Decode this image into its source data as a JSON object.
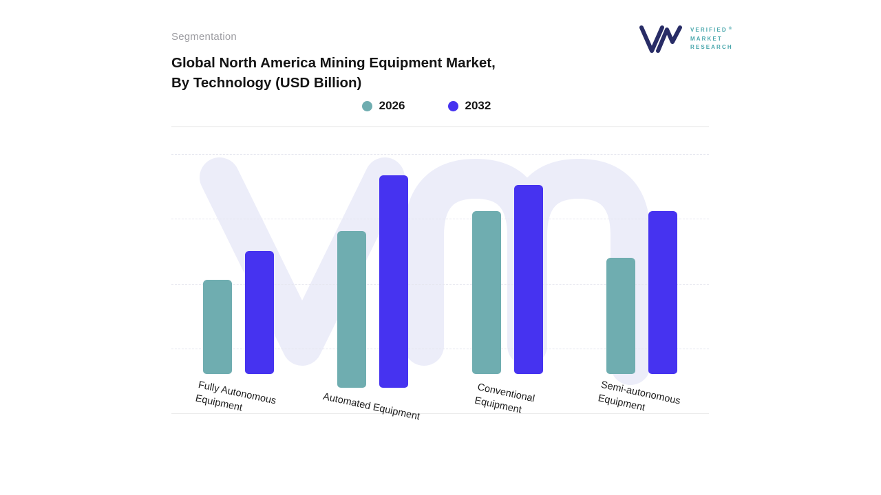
{
  "header": {
    "eyebrow": "Segmentation",
    "title_line1": "Global North America Mining Equipment Market,",
    "title_line2": "By Technology (USD Billion)"
  },
  "logo": {
    "line1": "VERIFIED",
    "line2": "MARKET",
    "line3": "RESEARCH",
    "registered": "®"
  },
  "legend": [
    {
      "label": "2026",
      "color": "#6fadb0"
    },
    {
      "label": "2032",
      "color": "#4633f0"
    }
  ],
  "category_label_lines": [
    [
      "Fully Autonomous",
      "Equipment"
    ],
    [
      "Automated Equipment"
    ],
    [
      "Conventional",
      "Equipment"
    ],
    [
      "Semi-autonomous",
      "Equipment"
    ]
  ],
  "chart_data": {
    "type": "bar",
    "title": "Global North America Mining Equipment Market, By Technology (USD Billion)",
    "categories": [
      "Fully Autonomous Equipment",
      "Automated Equipment",
      "Conventional Equipment",
      "Semi-autonomous Equipment"
    ],
    "series": [
      {
        "name": "2026",
        "color": "#6fadb0",
        "values": [
          43,
          67,
          74,
          53
        ]
      },
      {
        "name": "2032",
        "color": "#4633f0",
        "values": [
          56,
          91,
          86,
          74
        ]
      }
    ],
    "xlabel": "",
    "ylabel": "",
    "ylim": [
      0,
      100
    ],
    "grid": "dashed-horizontal",
    "legend_position": "top-center",
    "yaxis_tick_labels_visible": false,
    "value_labels_visible": false
  }
}
